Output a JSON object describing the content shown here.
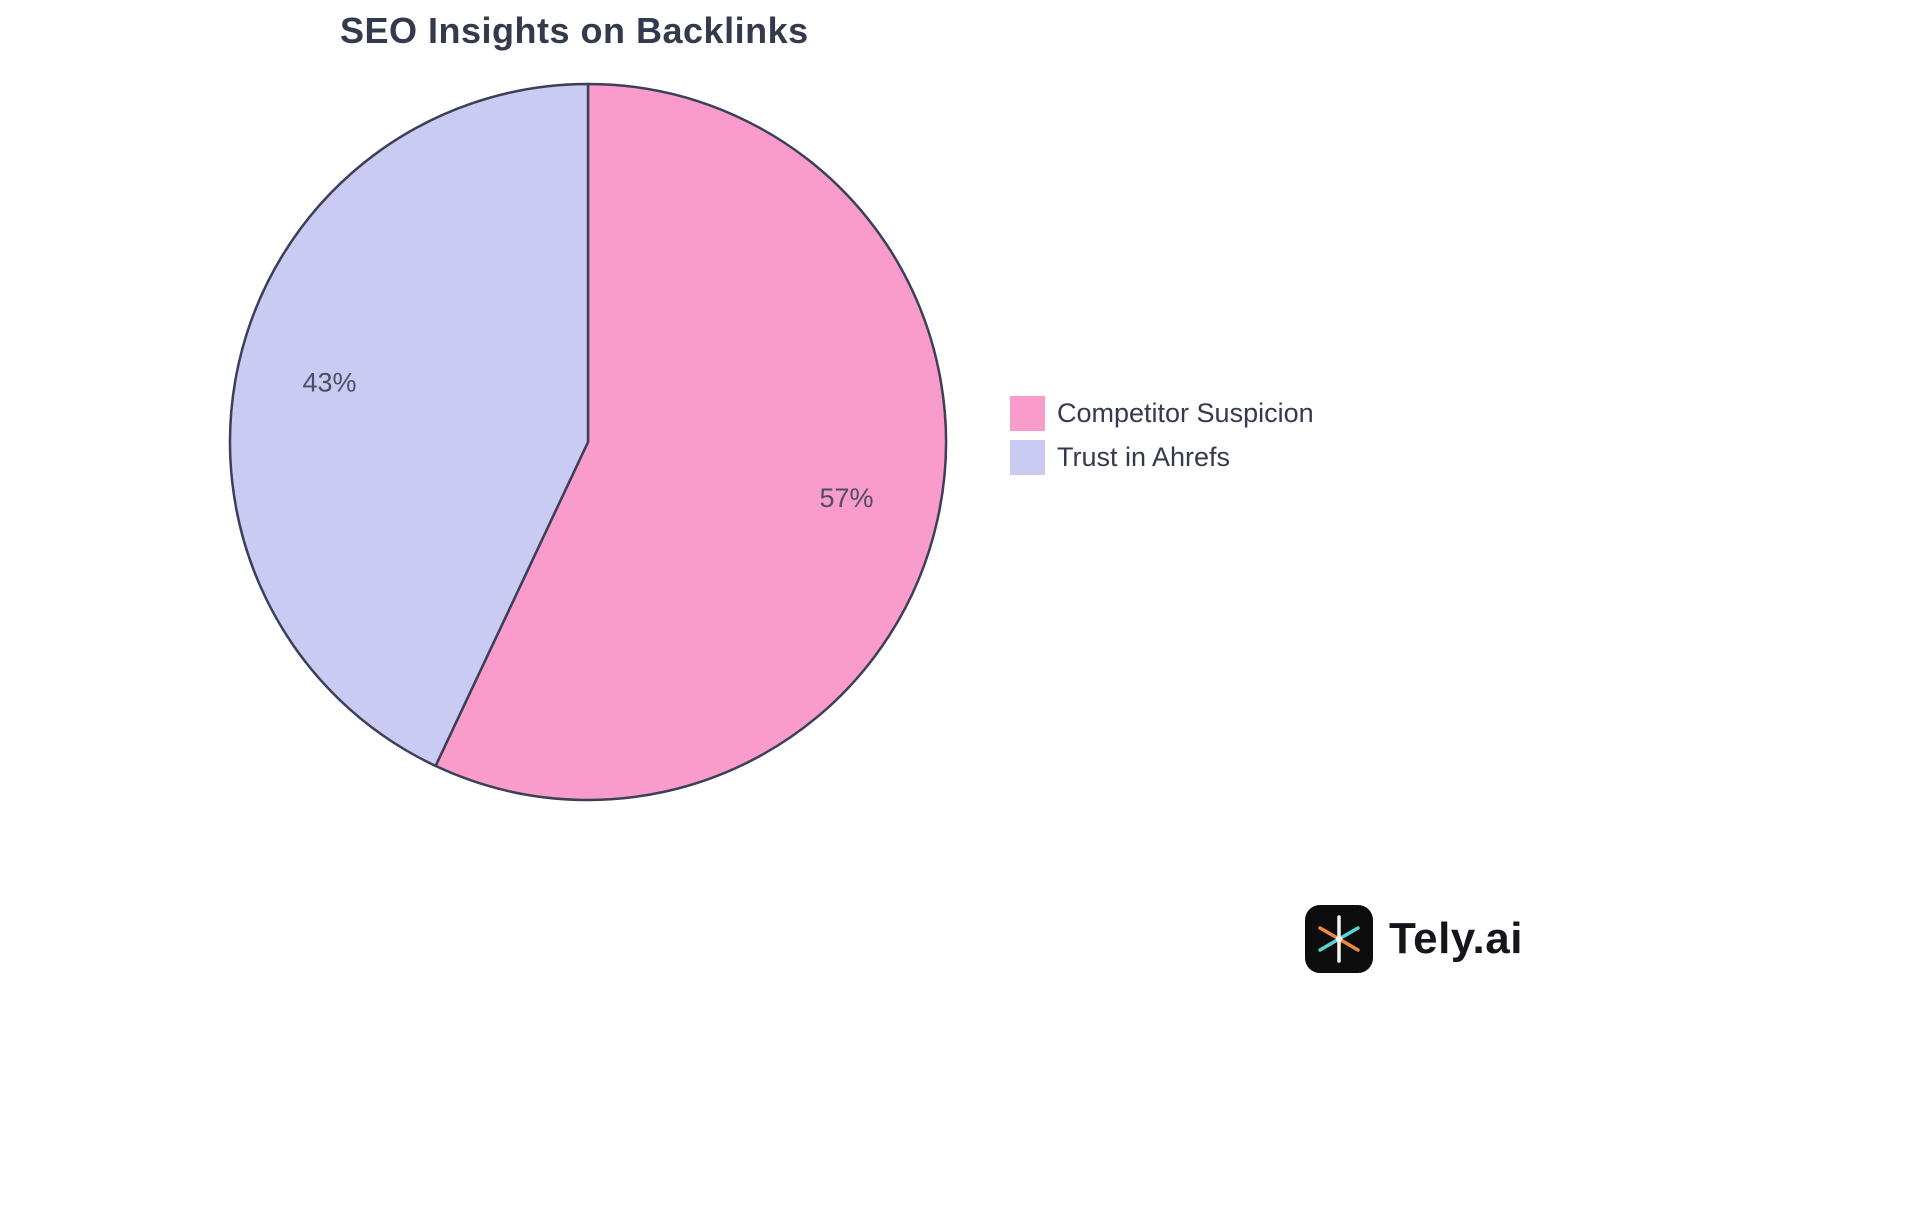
{
  "chart_data": {
    "type": "pie",
    "title": "SEO Insights on Backlinks",
    "slices": [
      {
        "label": "Competitor Suspicion",
        "value": 57,
        "pct_label": "57%",
        "color": "#F99BCB"
      },
      {
        "label": "Trust in Ahrefs",
        "value": 43,
        "pct_label": "43%",
        "color": "#CACBF3"
      }
    ],
    "start_angle": "top",
    "direction": "clockwise",
    "stroke_color": "#3B3F58",
    "stroke_width": 2.5,
    "legend_position": "right",
    "label_color": "#4c4f63"
  },
  "branding": {
    "logo_text": "Tely.ai"
  }
}
